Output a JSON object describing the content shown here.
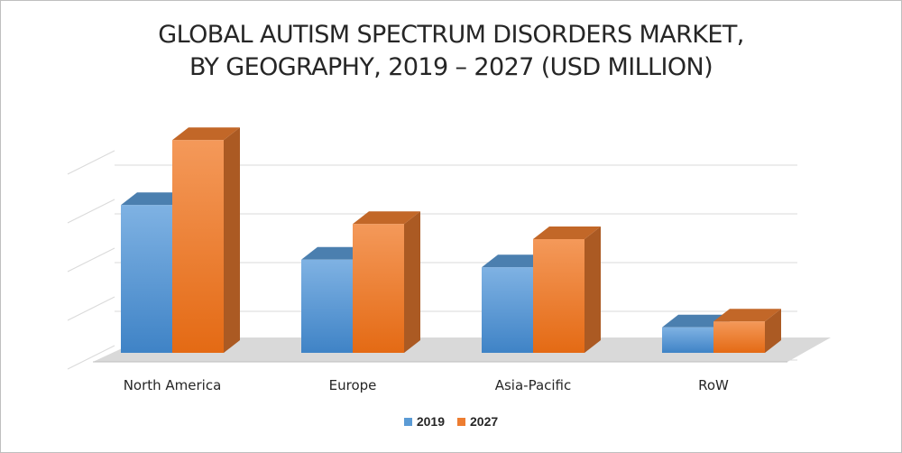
{
  "chart_data": {
    "type": "bar",
    "title_lines": [
      "GLOBAL AUTISM SPECTRUM DISORDERS MARKET,",
      "BY GEOGRAPHY, 2019 – 2027 (USD MILLION)"
    ],
    "categories": [
      "North America",
      "Europe",
      "Asia-Pacific",
      "RoW"
    ],
    "series": [
      {
        "name": "2019",
        "values": [
          2.73,
          1.72,
          1.58,
          0.47
        ],
        "color": "#5B9BD5"
      },
      {
        "name": "2027",
        "values": [
          3.93,
          2.38,
          2.1,
          0.58
        ],
        "color": "#ED7D31"
      }
    ],
    "ylim": [
      0,
      4.5
    ],
    "grid": true,
    "y_tick_labels_shown": false,
    "legend_position": "bottom",
    "style": "3d-clustered-column"
  }
}
